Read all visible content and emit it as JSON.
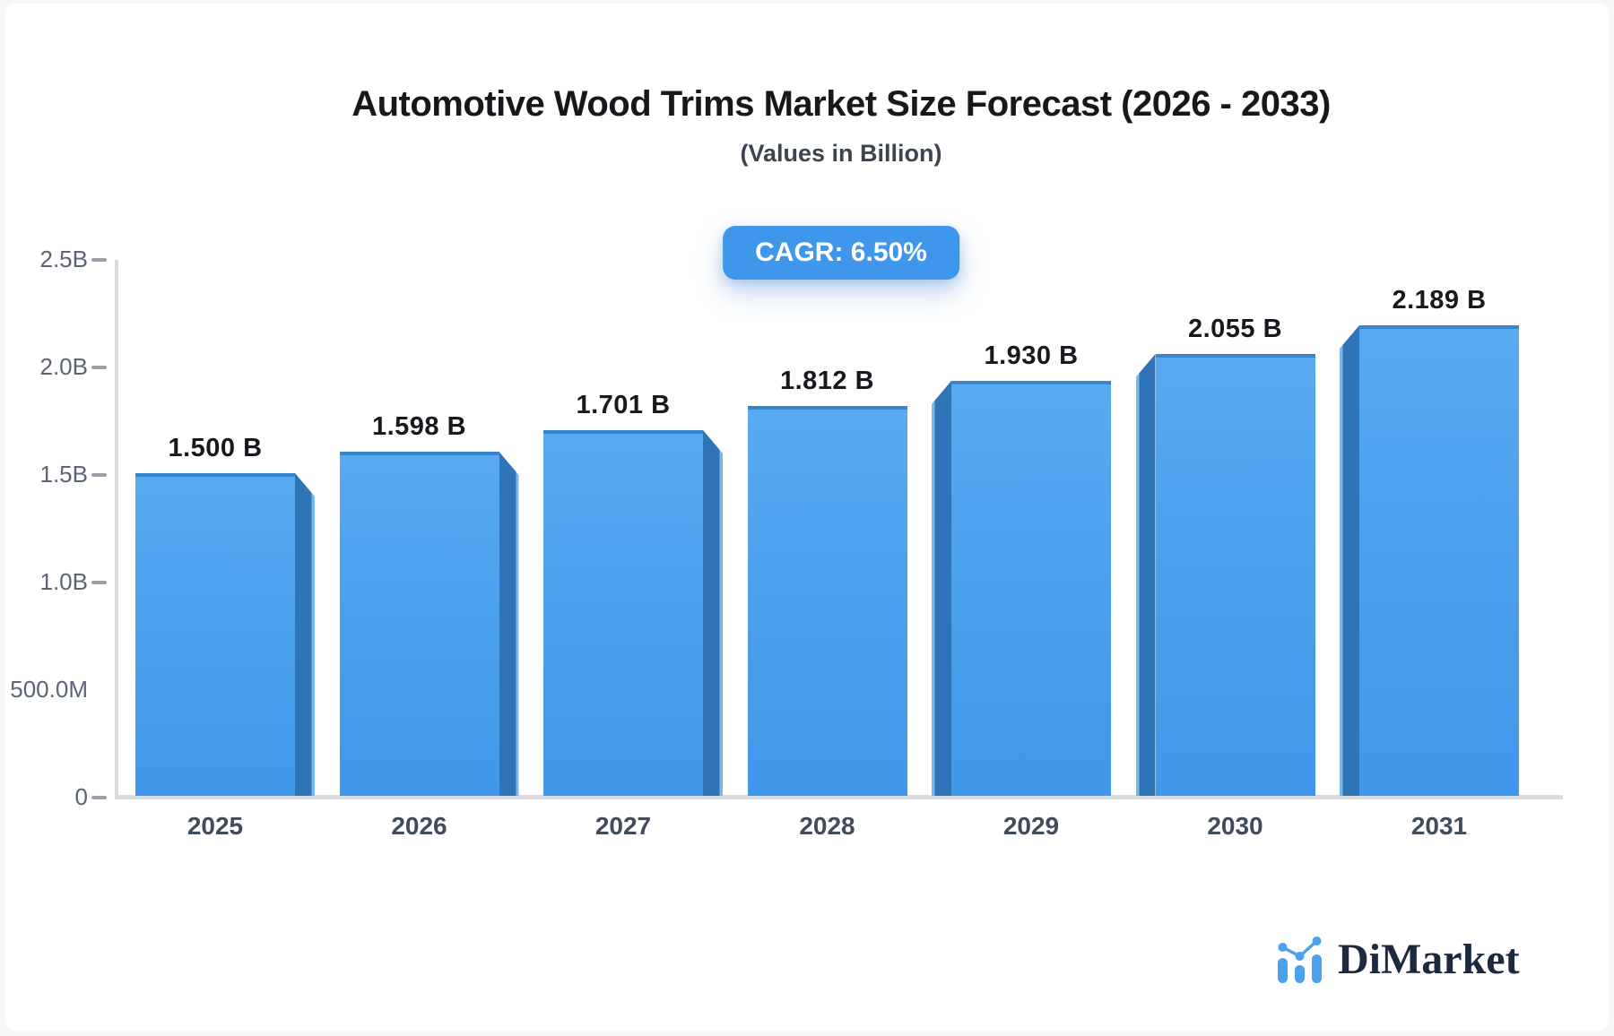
{
  "header": {
    "title": "Automotive Wood Trims Market Size Forecast (2026 - 2033)",
    "subtitle": "(Values in Billion)",
    "cagr_badge": "CAGR: 6.50%"
  },
  "chart_data": {
    "type": "bar",
    "title": "Automotive Wood Trims Market Size Forecast (2026 - 2033)",
    "subtitle": "(Values in Billion)",
    "cagr_percent": 6.5,
    "categories": [
      "2025",
      "2026",
      "2027",
      "2028",
      "2029",
      "2030",
      "2031"
    ],
    "values_billion": [
      1.5,
      1.598,
      1.701,
      1.812,
      1.93,
      2.055,
      2.189
    ],
    "value_labels": [
      "1.500 B",
      "1.598 B",
      "1.701 B",
      "1.812 B",
      "1.930 B",
      "2.055 B",
      "2.189 B"
    ],
    "ylim_billion": [
      0,
      2.5
    ],
    "yticks": [
      {
        "value": 2.5,
        "label": "2.5B",
        "tick_mark": true
      },
      {
        "value": 2.0,
        "label": "2.0B",
        "tick_mark": true
      },
      {
        "value": 1.5,
        "label": "1.5B",
        "tick_mark": true
      },
      {
        "value": 1.0,
        "label": "1.0B",
        "tick_mark": true
      },
      {
        "value": 0.5,
        "label": "500.0M",
        "tick_mark": false
      },
      {
        "value": 0.0,
        "label": "0",
        "tick_mark": true
      }
    ],
    "grid": false,
    "legend": "none",
    "style": "3d perspective bars; dark side facet faces chart center; center bar flat",
    "bar_face_color": "#4aa1ee",
    "bar_side_color": "#2e74b6",
    "bar_top_edge_color": "#3585cf"
  },
  "branding": {
    "logo_text": "DiMarket",
    "logo_icon": "bar-line-chart-icon",
    "logo_text_color": "#1c2940",
    "logo_icon_color": "#4aa1ee"
  },
  "colors": {
    "accent_blue": "#3e97ea",
    "axis_line": "#d8dbe0",
    "tick_mark": "#98a1ab",
    "y_label": "#5a6474",
    "x_label": "#414b59",
    "value_label": "#17191e",
    "title": "#16181c",
    "subtitle": "#3c4450",
    "page_frame": "#f6f7f9",
    "card_background": "#ffffff"
  }
}
